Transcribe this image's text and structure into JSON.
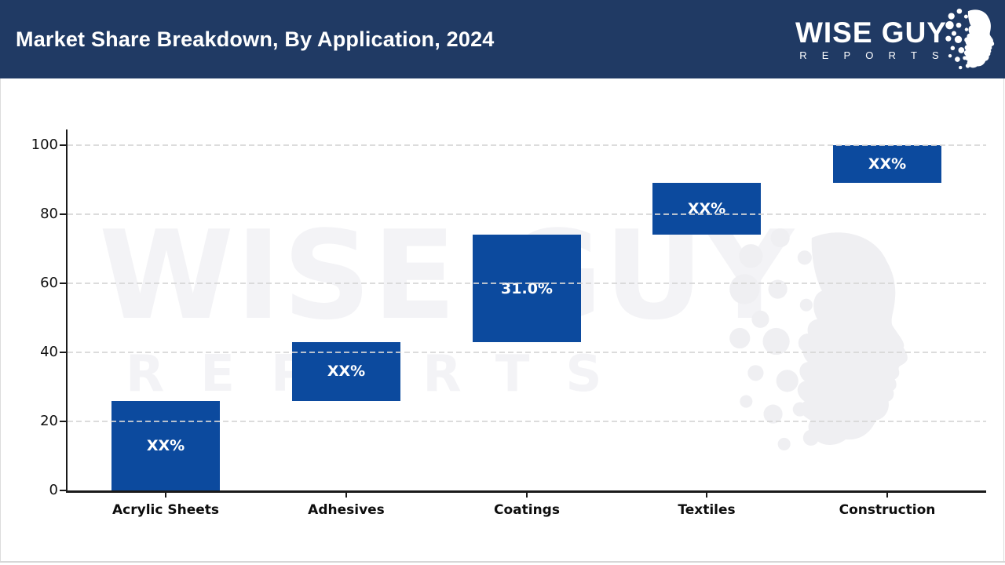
{
  "header": {
    "title": "Market Share Breakdown, By Application, 2024",
    "logo": {
      "wordmark": "WISE GUY",
      "subtext": "REPORTS"
    },
    "bg_color": "#203a64"
  },
  "watermark": {
    "wordmark": "WISE GUY",
    "subtext": "REPORTS"
  },
  "chart_data": {
    "type": "bar",
    "subtype": "floating-waterfall",
    "title": "Market Share Breakdown, By Application, 2024",
    "categories": [
      "Acrylic Sheets",
      "Adhesives",
      "Coatings",
      "Textiles",
      "Construction"
    ],
    "segments": [
      {
        "category": "Acrylic Sheets",
        "start": 0,
        "end": 26,
        "label": "XX%"
      },
      {
        "category": "Adhesives",
        "start": 26,
        "end": 43,
        "label": "XX%"
      },
      {
        "category": "Coatings",
        "start": 43,
        "end": 74,
        "label": "31.0%"
      },
      {
        "category": "Textiles",
        "start": 74,
        "end": 89,
        "label": "XX%"
      },
      {
        "category": "Construction",
        "start": 89,
        "end": 100,
        "label": "XX%"
      }
    ],
    "yticks": [
      0,
      20,
      40,
      60,
      80,
      100
    ],
    "ylim": [
      0,
      104.5
    ],
    "xlabel": "",
    "ylabel": "",
    "grid": "horizontal-dashed",
    "legend": "none",
    "bar_color": "#0c4a9e",
    "bar_label_color": "#ffffff",
    "axis_color": "#1a1a1a"
  }
}
